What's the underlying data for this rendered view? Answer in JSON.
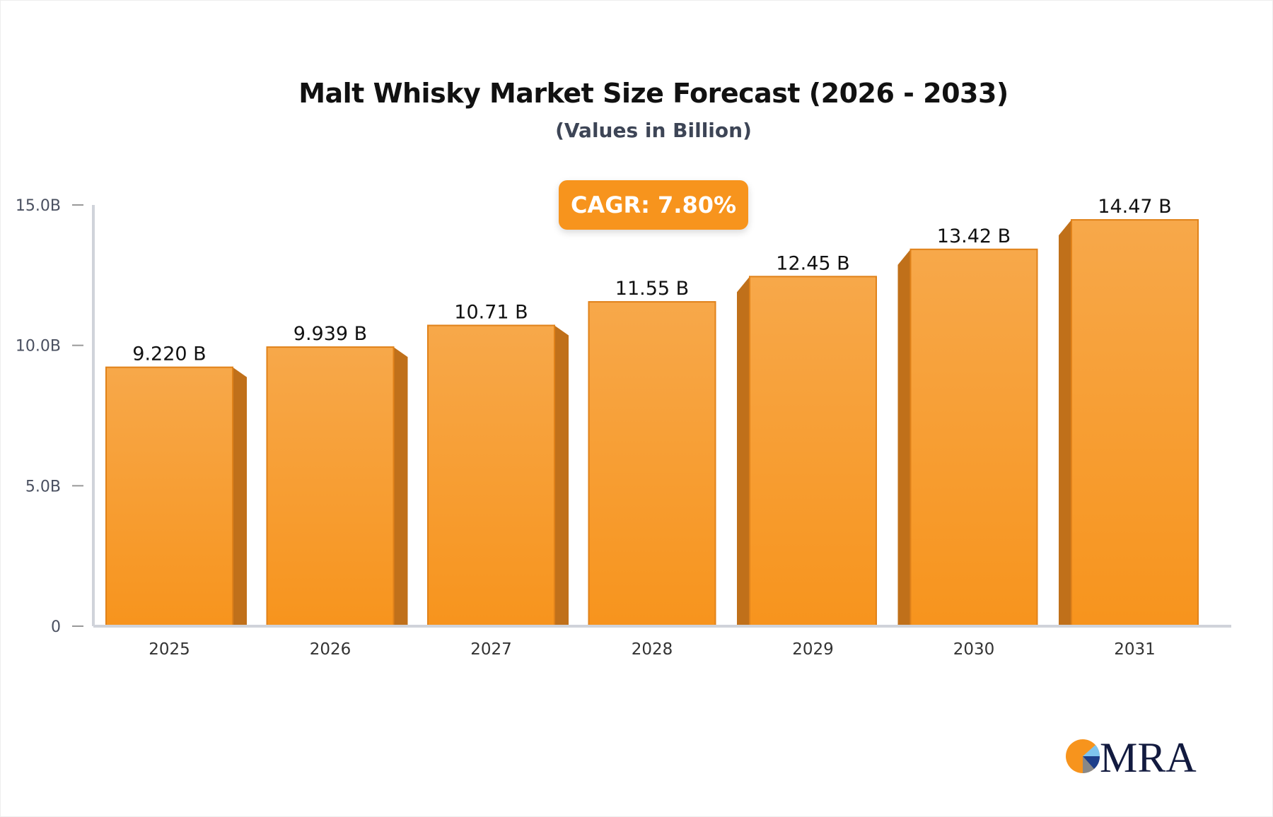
{
  "chart_data": {
    "type": "bar",
    "title": "Malt Whisky Market Size Forecast (2026 - 2033)",
    "subtitle": "(Values in Billion)",
    "annotation": "CAGR: 7.80%",
    "categories": [
      "2025",
      "2026",
      "2027",
      "2028",
      "2029",
      "2030",
      "2031"
    ],
    "values": [
      9.22,
      9.939,
      10.71,
      11.55,
      12.45,
      13.42,
      14.47
    ],
    "data_labels": [
      "9.220 B",
      "9.939 B",
      "10.71 B",
      "11.55 B",
      "12.45 B",
      "13.42 B",
      "14.47 B"
    ],
    "yticks": [
      0,
      5,
      10,
      15
    ],
    "ytick_labels": [
      "0",
      "5.0B",
      "10.0B",
      "15.0B"
    ],
    "ylim": [
      0,
      15
    ],
    "xlabel": "",
    "ylabel": "",
    "grid": false,
    "colors": {
      "bar_top": "#f7a84a",
      "bar_bottom": "#f7941d",
      "bar_side": "#c0701a",
      "bar_edge": "#e0821a"
    }
  },
  "logo": {
    "text": "MRA"
  }
}
